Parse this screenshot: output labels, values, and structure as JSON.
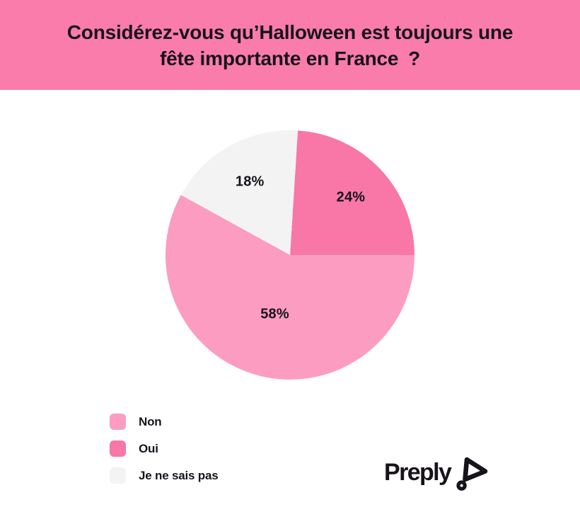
{
  "header": {
    "title_lines": [
      "Considérez-vous qu’Halloween est toujours une",
      "fête importante en France ?"
    ],
    "bg_color": "#fa7cab",
    "text_color": "#17131b"
  },
  "chart_data": {
    "type": "pie",
    "title": "Considérez-vous qu’Halloween est toujours une fête importante en France ?",
    "start_angle_deg": 3.6,
    "value_suffix": "%",
    "legend_position": "bottom-left",
    "slices": [
      {
        "label": "Oui",
        "value": 24,
        "color": "#f877a7"
      },
      {
        "label": "Non",
        "value": 58,
        "color": "#fc9cc0"
      },
      {
        "label": "Je ne sais pas",
        "value": 18,
        "color": "#f4f3f4"
      }
    ],
    "label_color": "#17131b"
  },
  "legend": {
    "items": [
      {
        "label": "Non",
        "color": "#fc9cc0"
      },
      {
        "label": "Oui",
        "color": "#f877a7"
      },
      {
        "label": "Je ne sais pas",
        "color": "#f4f3f4"
      }
    ]
  },
  "footer": {
    "brand": "Preply",
    "logo_icon": "preply-play-balloon-icon",
    "color": "#17131b"
  }
}
